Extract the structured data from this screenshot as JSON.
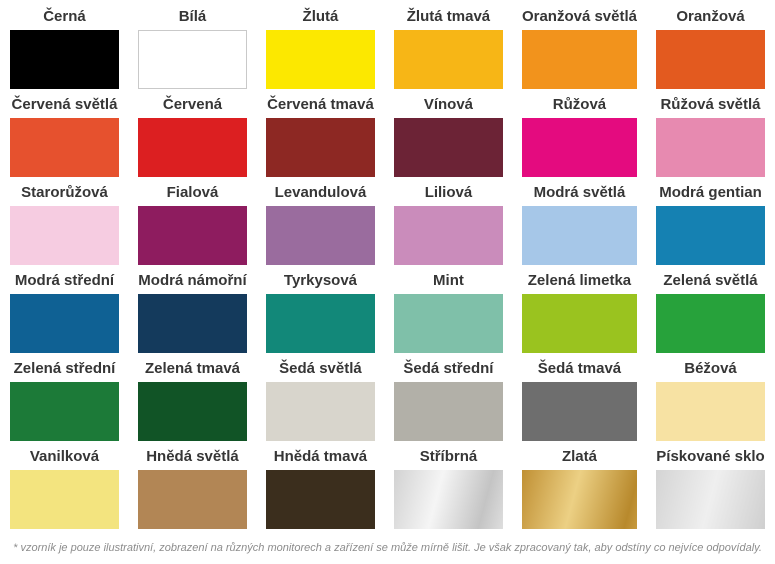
{
  "page": {
    "background": "#ffffff",
    "label_color": "#363636",
    "footnote_color": "#8c8c8c"
  },
  "swatches": [
    {
      "name": "cerna",
      "label": "Černá",
      "color": "#000000"
    },
    {
      "name": "bila",
      "label": "Bílá",
      "color": "#ffffff",
      "border": "#c9c9c9"
    },
    {
      "name": "zluta",
      "label": "Žlutá",
      "color": "#fce800"
    },
    {
      "name": "zluta-tmava",
      "label": "Žlutá tmavá",
      "color": "#f7b616"
    },
    {
      "name": "oranzova-svetla",
      "label": "Oranžová světlá",
      "color": "#f2931c"
    },
    {
      "name": "oranzova",
      "label": "Oranžová",
      "color": "#e35a1f"
    },
    {
      "name": "cervena-svetla",
      "label": "Červená světlá",
      "color": "#e6512e"
    },
    {
      "name": "cervena",
      "label": "Červená",
      "color": "#dc1f21"
    },
    {
      "name": "cervena-tmava",
      "label": "Červená tmavá",
      "color": "#8d2823"
    },
    {
      "name": "vinova",
      "label": "Vínová",
      "color": "#6c2336"
    },
    {
      "name": "ruzova",
      "label": "Růžová",
      "color": "#e40b7f"
    },
    {
      "name": "ruzova-svetla",
      "label": "Růžová světlá",
      "color": "#e78ab0"
    },
    {
      "name": "staroruzova",
      "label": "Starorůžová",
      "color": "#f6cce1"
    },
    {
      "name": "fialova",
      "label": "Fialová",
      "color": "#8e1c5f"
    },
    {
      "name": "levandulova",
      "label": "Levandulová",
      "color": "#9a6c9e"
    },
    {
      "name": "liliova",
      "label": "Liliová",
      "color": "#ca8cbb"
    },
    {
      "name": "modra-svetla",
      "label": "Modrá světlá",
      "color": "#a6c7e8"
    },
    {
      "name": "modra-gentian",
      "label": "Modrá gentian",
      "color": "#1581b2"
    },
    {
      "name": "modra-stredni",
      "label": "Modrá střední",
      "color": "#0f6194"
    },
    {
      "name": "modra-namorni",
      "label": "Modrá námořní",
      "color": "#143a5c"
    },
    {
      "name": "tyrkysova",
      "label": "Tyrkysová",
      "color": "#128879"
    },
    {
      "name": "mint",
      "label": "Mint",
      "color": "#7fc0a9"
    },
    {
      "name": "zelena-limetka",
      "label": "Zelená limetka",
      "color": "#9ac31f"
    },
    {
      "name": "zelena-svetla",
      "label": "Zelená světlá",
      "color": "#27a23b"
    },
    {
      "name": "zelena-stredni",
      "label": "Zelená střední",
      "color": "#1c7a38"
    },
    {
      "name": "zelena-tmava",
      "label": "Zelená tmavá",
      "color": "#115426"
    },
    {
      "name": "seda-svetla",
      "label": "Šedá světlá",
      "color": "#d8d5cc"
    },
    {
      "name": "seda-stredni",
      "label": "Šedá střední",
      "color": "#b2b0a8"
    },
    {
      "name": "seda-tmava",
      "label": "Šedá tmavá",
      "color": "#6e6e6e"
    },
    {
      "name": "bezova",
      "label": "Béžová",
      "color": "#f7e2a3"
    },
    {
      "name": "vanilkova",
      "label": "Vanilková",
      "color": "#f3e47f"
    },
    {
      "name": "hneda-svetla",
      "label": "Hnědá světlá",
      "color": "#b28655"
    },
    {
      "name": "hneda-tmava",
      "label": "Hnědá tmavá",
      "color": "#3b2e1d"
    },
    {
      "name": "stribrna",
      "label": "Stříbrná",
      "gradient": [
        "#d2d2d2 0%",
        "#f5f5f5 40%",
        "#c4c4c4 80%",
        "#dedede 100%"
      ]
    },
    {
      "name": "zlata",
      "label": "Zlatá",
      "gradient": [
        "#c09034 0%",
        "#ecd084 45%",
        "#b8892c 90%",
        "#c79a3e 100%"
      ]
    },
    {
      "name": "piskovane-sklo",
      "label": "Pískované sklo",
      "gradient": [
        "#d4d4d4 0%",
        "#efefef 50%",
        "#cfcfcf 100%"
      ]
    }
  ],
  "footnote": {
    "text": "* vzorník je pouze ilustrativní, zobrazení na různých monitorech a zařízení se může mírně lišit. Je však zpracovaný tak, aby odstíny co nejvíce odpovídaly."
  }
}
